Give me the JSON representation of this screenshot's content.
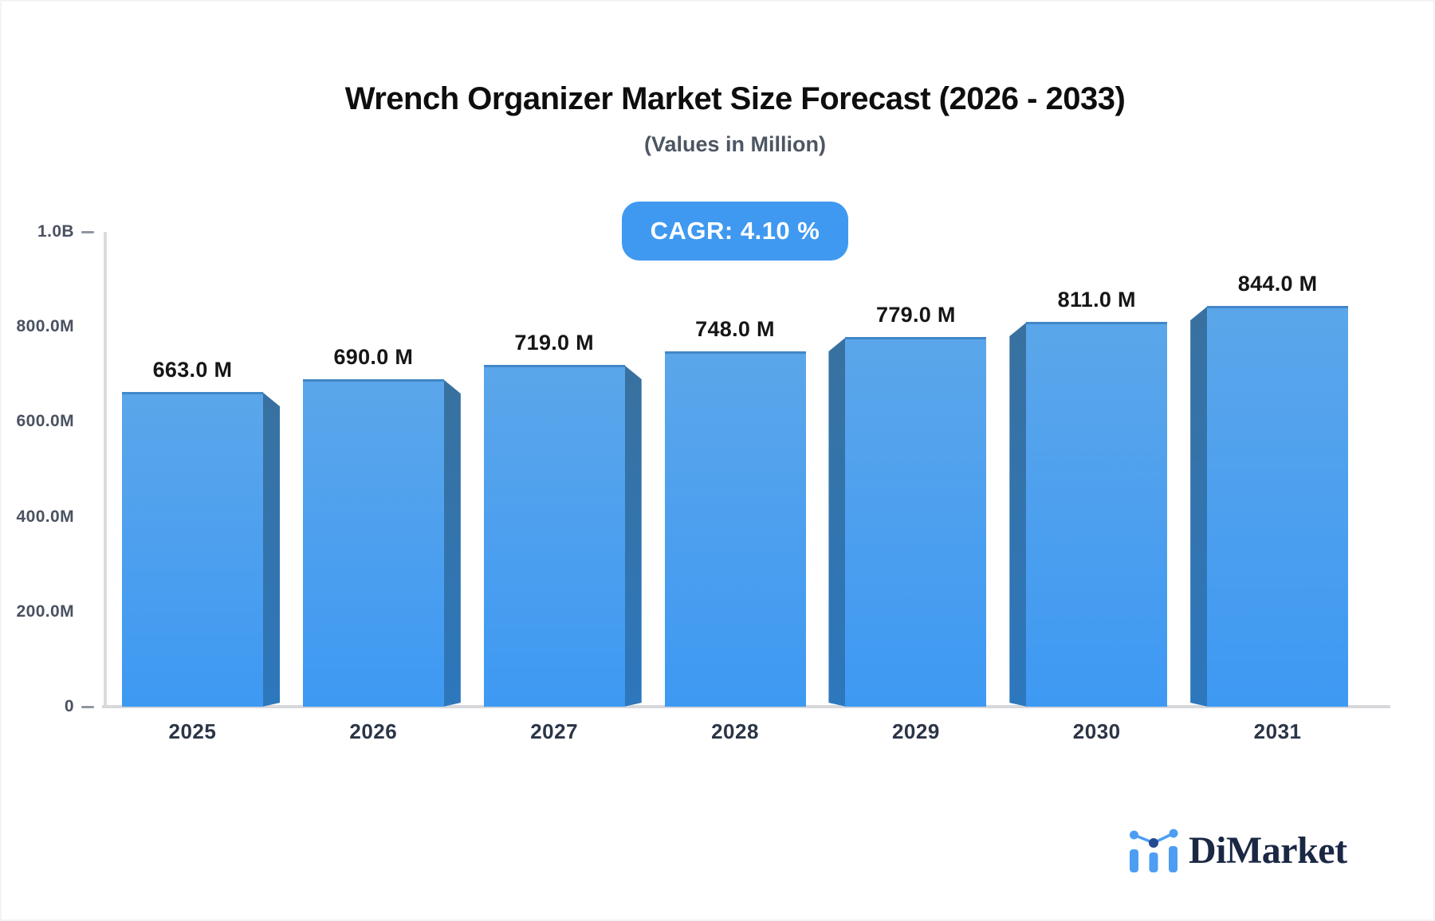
{
  "header": {
    "title": "Wrench Organizer Market Size Forecast (2026 - 2033)",
    "subtitle": "(Values in Million)",
    "cagr_label": "CAGR: 4.10 %"
  },
  "chart_data": {
    "type": "bar",
    "title": "Wrench Organizer Market Size Forecast (2026 - 2033)",
    "subtitle": "(Values in Million)",
    "cagr_percent": "4.10 %",
    "categories": [
      "2025",
      "2026",
      "2027",
      "2028",
      "2029",
      "2030",
      "2031"
    ],
    "values": [
      663,
      690,
      719,
      748,
      779,
      811,
      844
    ],
    "bar_labels": [
      "663.0 M",
      "690.0 M",
      "719.0 M",
      "748.0 M",
      "779.0 M",
      "811.0 M",
      "844.0 M"
    ],
    "unit": "Million",
    "ylim_millions": [
      0,
      1000
    ],
    "yticks": [
      {
        "label": "1.0B",
        "value": 1000,
        "tick_dash": true
      },
      {
        "label": "800.0M",
        "value": 800,
        "tick_dash": false
      },
      {
        "label": "600.0M",
        "value": 600,
        "tick_dash": false
      },
      {
        "label": "400.0M",
        "value": 400,
        "tick_dash": false
      },
      {
        "label": "200.0M",
        "value": 200,
        "tick_dash": false
      },
      {
        "label": "0",
        "value": 0,
        "tick_dash": true
      }
    ],
    "grid": false,
    "legend": false
  },
  "brand": {
    "name": "DiMarket"
  },
  "colors": {
    "title": "#0e0e0e",
    "subtitle": "#4d5663",
    "badge_bg": "#3f99f0",
    "badge_text": "#ffffff",
    "bar_face_top": "#5ba6ea",
    "bar_face_bottom": "#3e99f3",
    "bar_face_edge": "#4187c7",
    "bar_side_top": "#38719f",
    "bar_side_bottom": "#2d77bd",
    "axis_line": "#dbdbde",
    "baseline": "#d6d8db",
    "tick_dash": "#8f969f",
    "ylabel": "#4a5160",
    "xlabel": "#2b3547",
    "value_label": "#161616",
    "brand_blue": "#4d9ef3",
    "brand_dot": "#25488f",
    "brand_navy": "#1b2844"
  }
}
